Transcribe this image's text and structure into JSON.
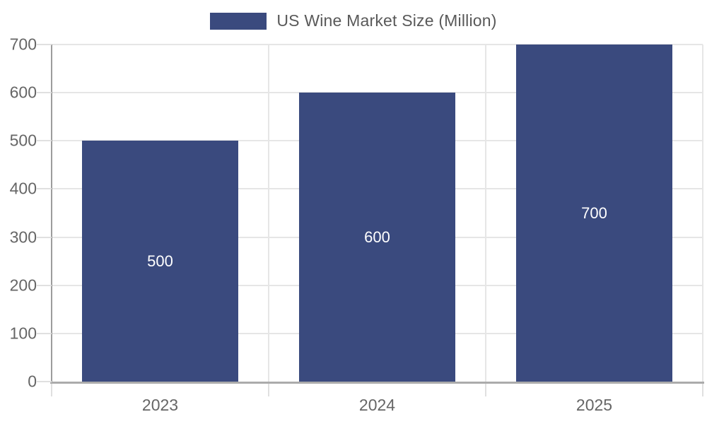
{
  "chart_data": {
    "type": "bar",
    "title": "US Wine Market Size (Million)",
    "categories": [
      "2023",
      "2024",
      "2025"
    ],
    "values": [
      500,
      600,
      700
    ],
    "data_labels": [
      "500",
      "600",
      "700"
    ],
    "xlabel": "",
    "ylabel": "",
    "ylim": [
      0,
      700
    ],
    "yticks": [
      0,
      100,
      200,
      300,
      400,
      500,
      600,
      700
    ],
    "grid": true,
    "legend_position": "top-center",
    "bar_color": "#3A4A7E",
    "data_label_color": "#FFFFFF"
  },
  "legend": {
    "label": "US Wine Market Size (Million)"
  },
  "colors": {
    "bar": "#3A4A7E",
    "grid": "#E6E6E6",
    "tick": "#E0E0E0",
    "y_axis": "#9C9C9C",
    "x_axis": "#ABABAB",
    "tick_text": "#666666",
    "legend_text": "#595959"
  }
}
